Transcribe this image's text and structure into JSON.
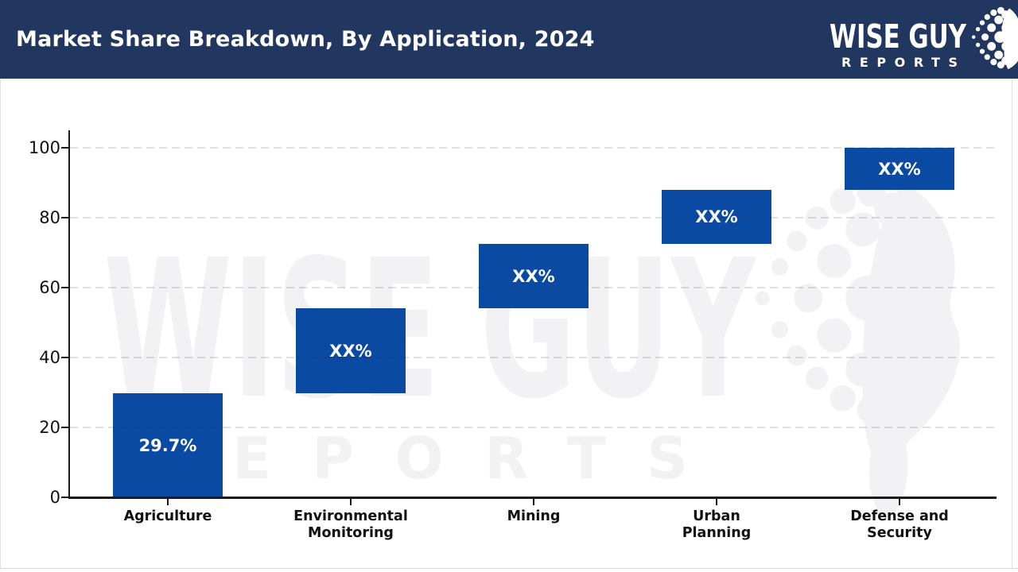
{
  "header": {
    "title": "Market Share Breakdown, By Application, 2024",
    "logo": {
      "line1": "WISE GUY",
      "line2": "REPORTS"
    }
  },
  "watermark": {
    "line1": "WISE GUY",
    "line2": "REPORTS"
  },
  "chart_data": {
    "type": "bar",
    "subtype": "waterfall-floating-bars",
    "title": "Market Share Breakdown, By Application, 2024",
    "categories": [
      "Agriculture",
      "Environmental Monitoring",
      "Mining",
      "Urban Planning",
      "Defense and Security"
    ],
    "bars": [
      {
        "category": "Agriculture",
        "start": 0,
        "end": 29.7,
        "value": 29.7,
        "label": "29.7%"
      },
      {
        "category": "Environmental Monitoring",
        "start": 29.7,
        "end": 54.0,
        "value": 24.3,
        "label": "XX%"
      },
      {
        "category": "Mining",
        "start": 54.0,
        "end": 72.4,
        "value": 18.4,
        "label": "XX%"
      },
      {
        "category": "Urban Planning",
        "start": 72.4,
        "end": 87.9,
        "value": 15.5,
        "label": "XX%"
      },
      {
        "category": "Defense and Security",
        "start": 87.9,
        "end": 100,
        "value": 12.1,
        "label": "XX%"
      }
    ],
    "yticks": [
      0,
      20,
      40,
      60,
      80,
      100
    ],
    "ylim": [
      0,
      105
    ],
    "xlabel": "",
    "ylabel": "",
    "grid": "horizontal-dashed",
    "legend": "none",
    "colors": {
      "bar": "#0b4aa2",
      "bar_label": "#ffffff",
      "axis": "#1a1a1a",
      "gridline": "#dcdcdc",
      "header_bg": "#22375f",
      "header_text": "#ffffff",
      "watermark": "#f2f2f4"
    }
  }
}
